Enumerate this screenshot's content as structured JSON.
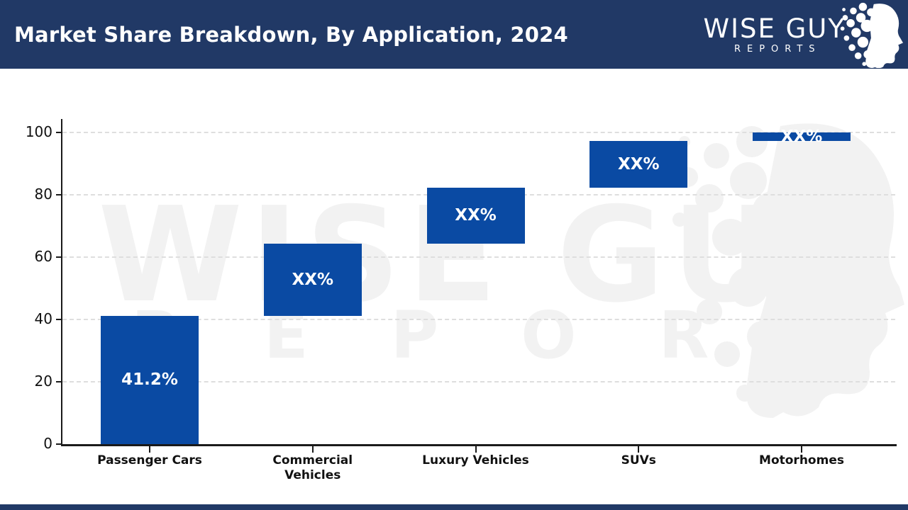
{
  "header": {
    "title": "Market Share Breakdown, By Application, 2024",
    "bg_color": "#213966",
    "logo": {
      "line1": "WISE GUY",
      "line2": "REPORTS"
    }
  },
  "watermark": {
    "line1": "WISE GUY",
    "line2": "R E P O R T S"
  },
  "chart_data": {
    "type": "bar",
    "variant": "waterfall",
    "title": "Market Share Breakdown, By Application, 2024",
    "categories": [
      "Passenger Cars",
      "Commercial Vehicles",
      "Luxury Vehicles",
      "SUVs",
      "Motorhomes"
    ],
    "category_label_lines": [
      [
        "Passenger Cars"
      ],
      [
        "Commercial",
        "Vehicles"
      ],
      [
        "Luxury Vehicles"
      ],
      [
        "SUVs"
      ],
      [
        "Motorhomes"
      ]
    ],
    "segments": [
      {
        "category": "Passenger Cars",
        "start": 0,
        "end": 41.2,
        "label": "41.2%"
      },
      {
        "category": "Commercial Vehicles",
        "start": 41.2,
        "end": 64.4,
        "label": "XX%"
      },
      {
        "category": "Luxury Vehicles",
        "start": 64.4,
        "end": 82.3,
        "label": "XX%"
      },
      {
        "category": "SUVs",
        "start": 82.3,
        "end": 97.2,
        "label": "XX%"
      },
      {
        "category": "Motorhomes",
        "start": 97.2,
        "end": 100,
        "label": "XX%"
      }
    ],
    "yticks": [
      0,
      20,
      40,
      60,
      80,
      100
    ],
    "ylim": [
      0,
      105
    ],
    "xlabel": "",
    "ylabel": "",
    "grid": "horizontal-dashed",
    "legend": "none",
    "bar_color": "#0A4AA3",
    "label_color": "#ffffff"
  }
}
